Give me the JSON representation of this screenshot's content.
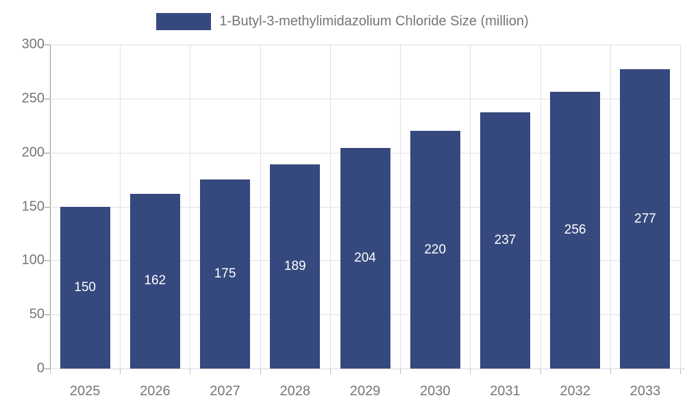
{
  "chart_data": {
    "type": "bar",
    "title": "1-Butyl-3-methylimidazolium Chloride Size (million)",
    "legend": "1-Butyl-3-methylimidazolium Chloride Size (million)",
    "legend_position": "top-center",
    "categories": [
      "2025",
      "2026",
      "2027",
      "2028",
      "2029",
      "2030",
      "2031",
      "2032",
      "2033"
    ],
    "values": [
      150,
      162,
      175,
      189,
      204,
      220,
      237,
      256,
      277
    ],
    "value_labels_inside_bars": true,
    "xlabel": "",
    "ylabel": "",
    "ylim": [
      0,
      300
    ],
    "ytick_step": 50,
    "yticks": [
      0,
      50,
      100,
      150,
      200,
      250,
      300
    ],
    "grid": "on",
    "colors": {
      "bar": "#36497e",
      "value_label": "#ffffff",
      "axis_text": "#757575",
      "gridline": "#e0e0e0",
      "axis_line": "#8f8f8f",
      "background": "#ffffff"
    }
  }
}
